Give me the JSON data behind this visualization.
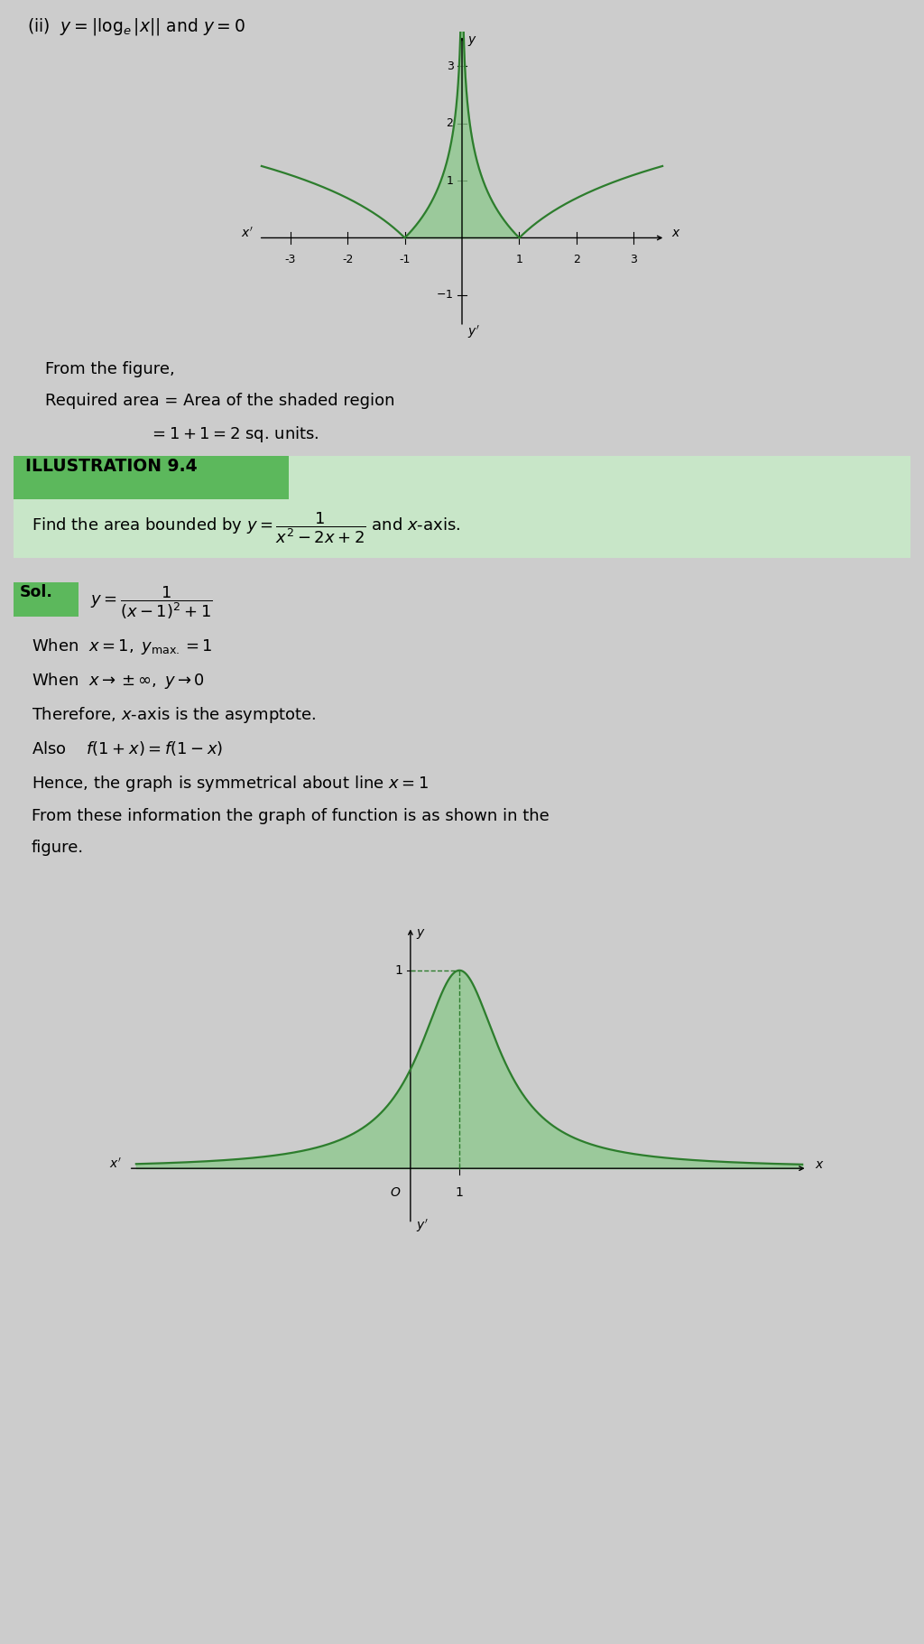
{
  "bg_color": "#cccccc",
  "plot1_green_fill": "#8bc98b",
  "plot1_green_line": "#2d7d2d",
  "plot2_green_fill": "#8bc98b",
  "plot2_green_line": "#2d7d2d",
  "illus_box_bg": "#c8e6c8",
  "illus_header_bg": "#5cb85c",
  "sol_box_bg": "#5cb85c",
  "text_color": "#1a1a1a",
  "title_text": "(ii)  $y = |\\log_e|x||$ and $y = 0$",
  "from_fig": "From the figure,",
  "req_area1": "Required area = Area of the shaded region",
  "req_area2": "                       = 1 + 1 = 2 sq. units.",
  "illus_header": "ILLUSTRATION 9.4",
  "illus_body": "Find the area bounded by $y = \\dfrac{1}{x^2 - 2x + 2}$ and $x$-axis.",
  "sol_header": "Sol.",
  "sol_formula": "$y = \\dfrac{1}{(x-1)^2 + 1}$",
  "line1": "When  $x = 1,\\; y_{\\mathrm{max.}} = 1$",
  "line2": "When  $x \\rightarrow \\pm\\infty,\\; y \\rightarrow 0$",
  "line3": "Therefore, $x$-axis is the asymptote.",
  "line4": "Also    $f(1+x) = f(1-x)$",
  "line5": "Hence, the graph is symmetrical about line $x = 1$",
  "line6a": "From these information the graph of function is as shown in the",
  "line6b": "figure."
}
